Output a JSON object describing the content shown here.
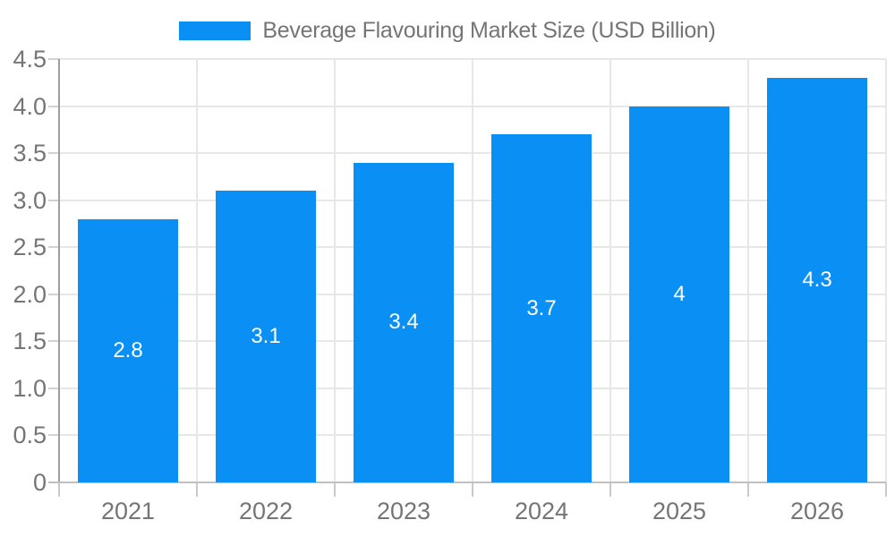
{
  "chart_data": {
    "type": "bar",
    "title": "Beverage Flavouring Market Size (USD Billion)",
    "categories": [
      "2021",
      "2022",
      "2023",
      "2024",
      "2025",
      "2026"
    ],
    "values": [
      2.8,
      3.1,
      3.4,
      3.7,
      4,
      4.3
    ],
    "value_labels": [
      "2.8",
      "3.1",
      "3.4",
      "3.7",
      "4",
      "4.3"
    ],
    "xlabel": "",
    "ylabel": "",
    "ylim": [
      0,
      4.5
    ],
    "y_tick_values": [
      0,
      0.5,
      1,
      1.5,
      2,
      2.5,
      3,
      3.5,
      4,
      4.5
    ],
    "y_tick_labels": [
      "0",
      "0.5",
      "1.0",
      "1.5",
      "2.0",
      "2.5",
      "3.0",
      "3.5",
      "4.0",
      "4.5"
    ],
    "grid": true,
    "legend_position": "top",
    "colors": {
      "bar": "#0a8ff5",
      "bar_value_text": "#ffffff"
    }
  }
}
